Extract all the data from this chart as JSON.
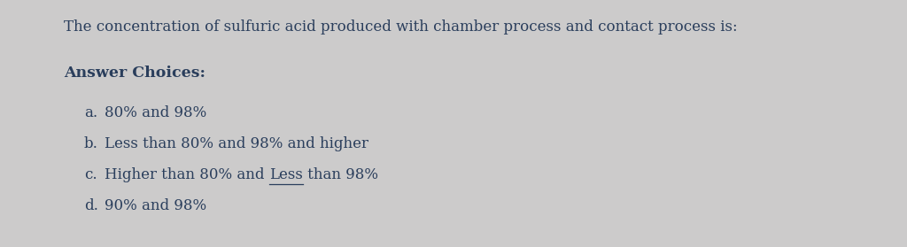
{
  "title": "The concentration of sulfuric acid produced with chamber process and contact process is:",
  "answer_choices_label": "Answer Choices:",
  "choices": [
    {
      "letter": "a.",
      "text": "80% and 98%"
    },
    {
      "letter": "b.",
      "text": "Less than 80% and 98% and higher"
    },
    {
      "letter": "c.",
      "text_before": "Higher than 80% and ",
      "text_underline": "Less",
      "text_after": " than 98%"
    },
    {
      "letter": "d.",
      "text": "90% and 98%"
    }
  ],
  "bg_color": "#cccbcb",
  "text_color": "#2a3e5c",
  "title_fontsize": 12.0,
  "label_fontsize": 12.5,
  "choice_fontsize": 12.0,
  "fig_width": 10.24,
  "fig_height": 2.79
}
